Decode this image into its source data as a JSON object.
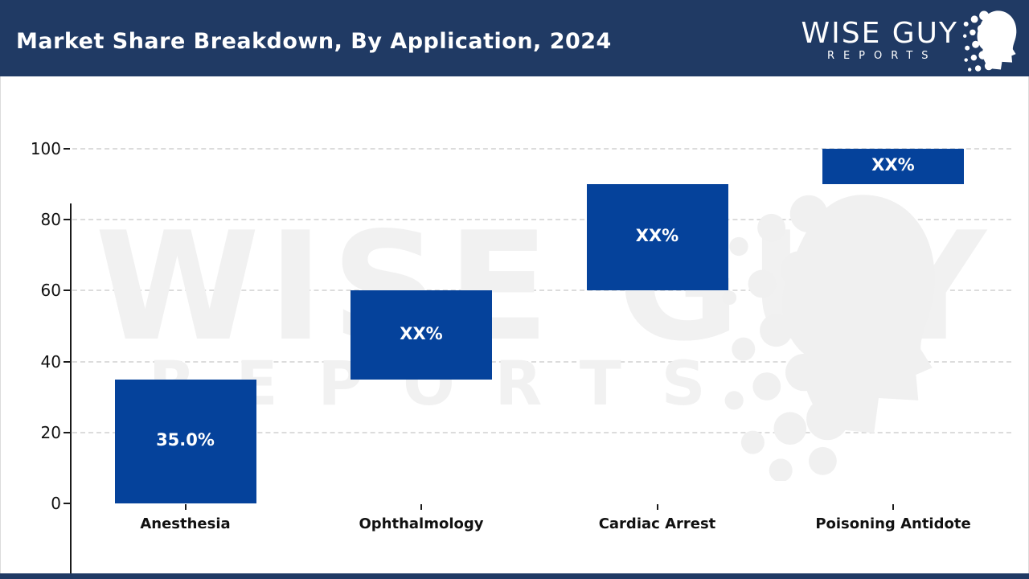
{
  "header": {
    "title": "Market Share Breakdown, By Application, 2024",
    "logo": {
      "line1": "WISE GUY",
      "line2": "REPORTS"
    }
  },
  "watermark": {
    "line1": "WISE GUY",
    "line2": "REPORTS"
  },
  "chart_data": {
    "type": "bar",
    "subtype": "waterfall",
    "title": "Market Share Breakdown, By Application, 2024",
    "categories": [
      "Anesthesia",
      "Ophthalmology",
      "Cardiac Arrest",
      "Poisoning Antidote"
    ],
    "segments": [
      {
        "category": "Anesthesia",
        "start": 0,
        "end": 35,
        "label": "35.0%"
      },
      {
        "category": "Ophthalmology",
        "start": 35,
        "end": 60,
        "label": "XX%"
      },
      {
        "category": "Cardiac Arrest",
        "start": 60,
        "end": 90,
        "label": "XX%"
      },
      {
        "category": "Poisoning Antidote",
        "start": 90,
        "end": 100,
        "label": "XX%"
      }
    ],
    "yticks": [
      0,
      20,
      40,
      60,
      80,
      100
    ],
    "ylim": [
      0,
      105
    ],
    "xlabel": "",
    "ylabel": "",
    "grid": "horizontal-dashed",
    "legend": "none",
    "bar_color": "#05429b"
  },
  "colors": {
    "header_bg": "#203a64",
    "footer_bg": "#203a64",
    "bar": "#05429b",
    "grid": "#dcdcdc",
    "axis": "#1a1a1a",
    "watermark": "#f1f1f1",
    "title_text": "#ffffff",
    "bar_label_text": "#ffffff"
  }
}
